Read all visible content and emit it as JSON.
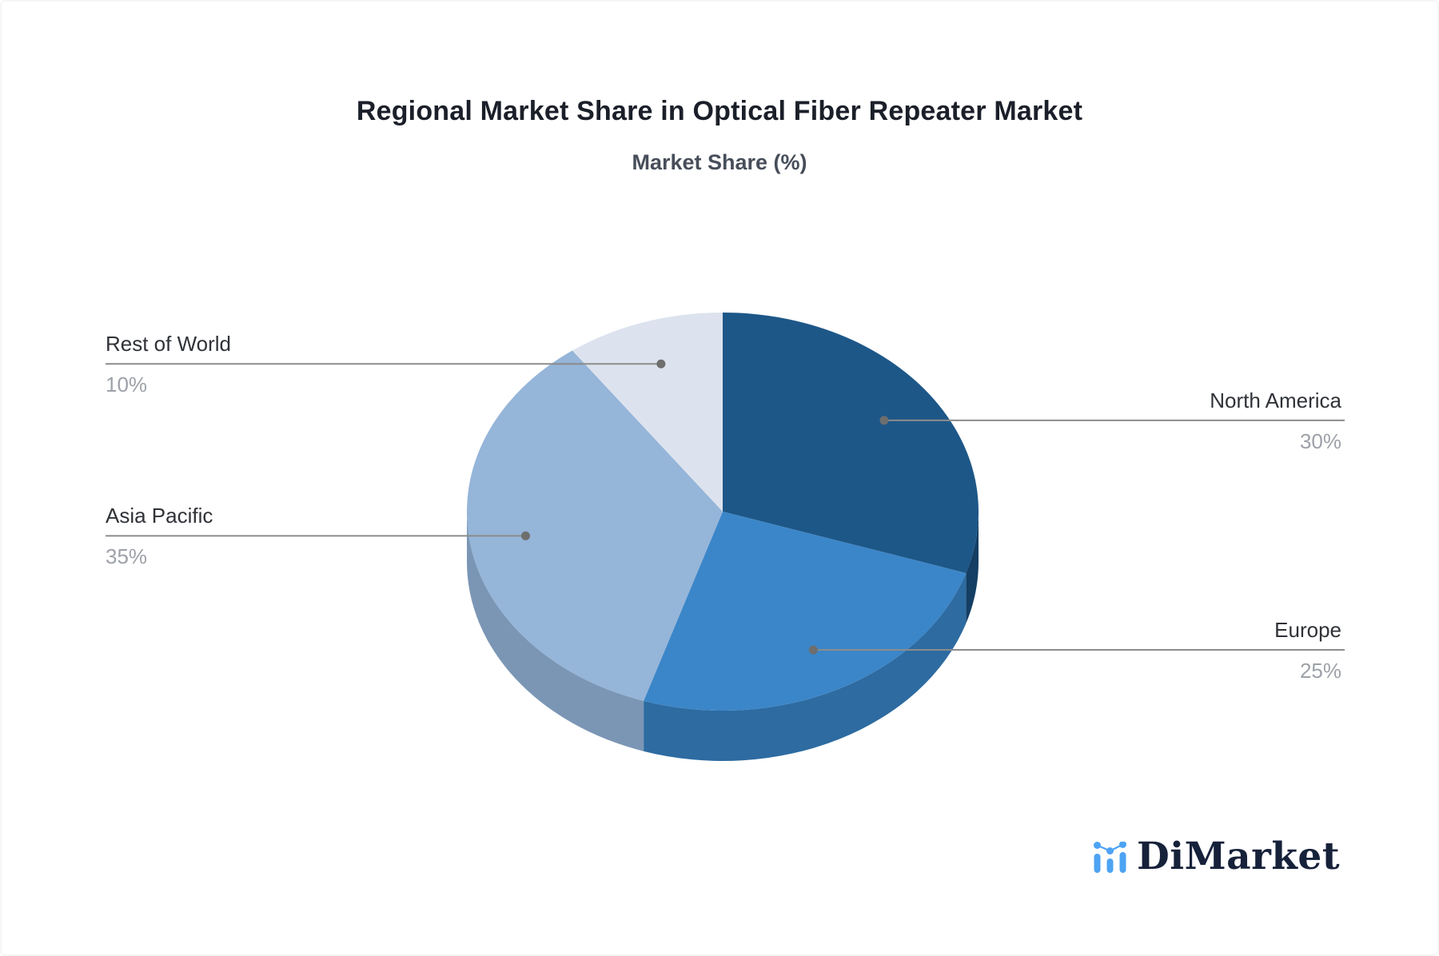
{
  "chart_data": {
    "type": "pie",
    "pie_style": "3d",
    "title": "Regional Market Share in Optical Fiber Repeater Market",
    "subtitle": "Market Share (%)",
    "unit": "%",
    "start_angle_deg": 0,
    "direction": "clockwise",
    "slices": [
      {
        "label": "North America",
        "value": 30,
        "pct_label": "30%",
        "color": "#1d5788",
        "side_color": "#143e63",
        "label_side": "right"
      },
      {
        "label": "Europe",
        "value": 25,
        "pct_label": "25%",
        "color": "#3b86c8",
        "side_color": "#2d6ba1",
        "label_side": "right"
      },
      {
        "label": "Asia Pacific",
        "value": 35,
        "pct_label": "35%",
        "color": "#95b5d9",
        "side_color": "#7b96b5",
        "label_side": "left"
      },
      {
        "label": "Rest of World",
        "value": 10,
        "pct_label": "10%",
        "color": "#dce3ee",
        "side_color": "#b7c3d6",
        "label_side": "left"
      }
    ],
    "legend_position": "none",
    "leader_line_color": "#8c8c8c",
    "leader_dot_color": "#6e6e6e",
    "title_color": "#1b1f29",
    "subtitle_color": "#474e5a",
    "label_color": "#2f3237",
    "pct_color": "#9da1a8"
  },
  "branding": {
    "logo_text": "DiMarket",
    "logo_color": "#16213a",
    "logo_icon": "bar-chart-logo-icon",
    "logo_icon_color": "#4da3f3"
  }
}
